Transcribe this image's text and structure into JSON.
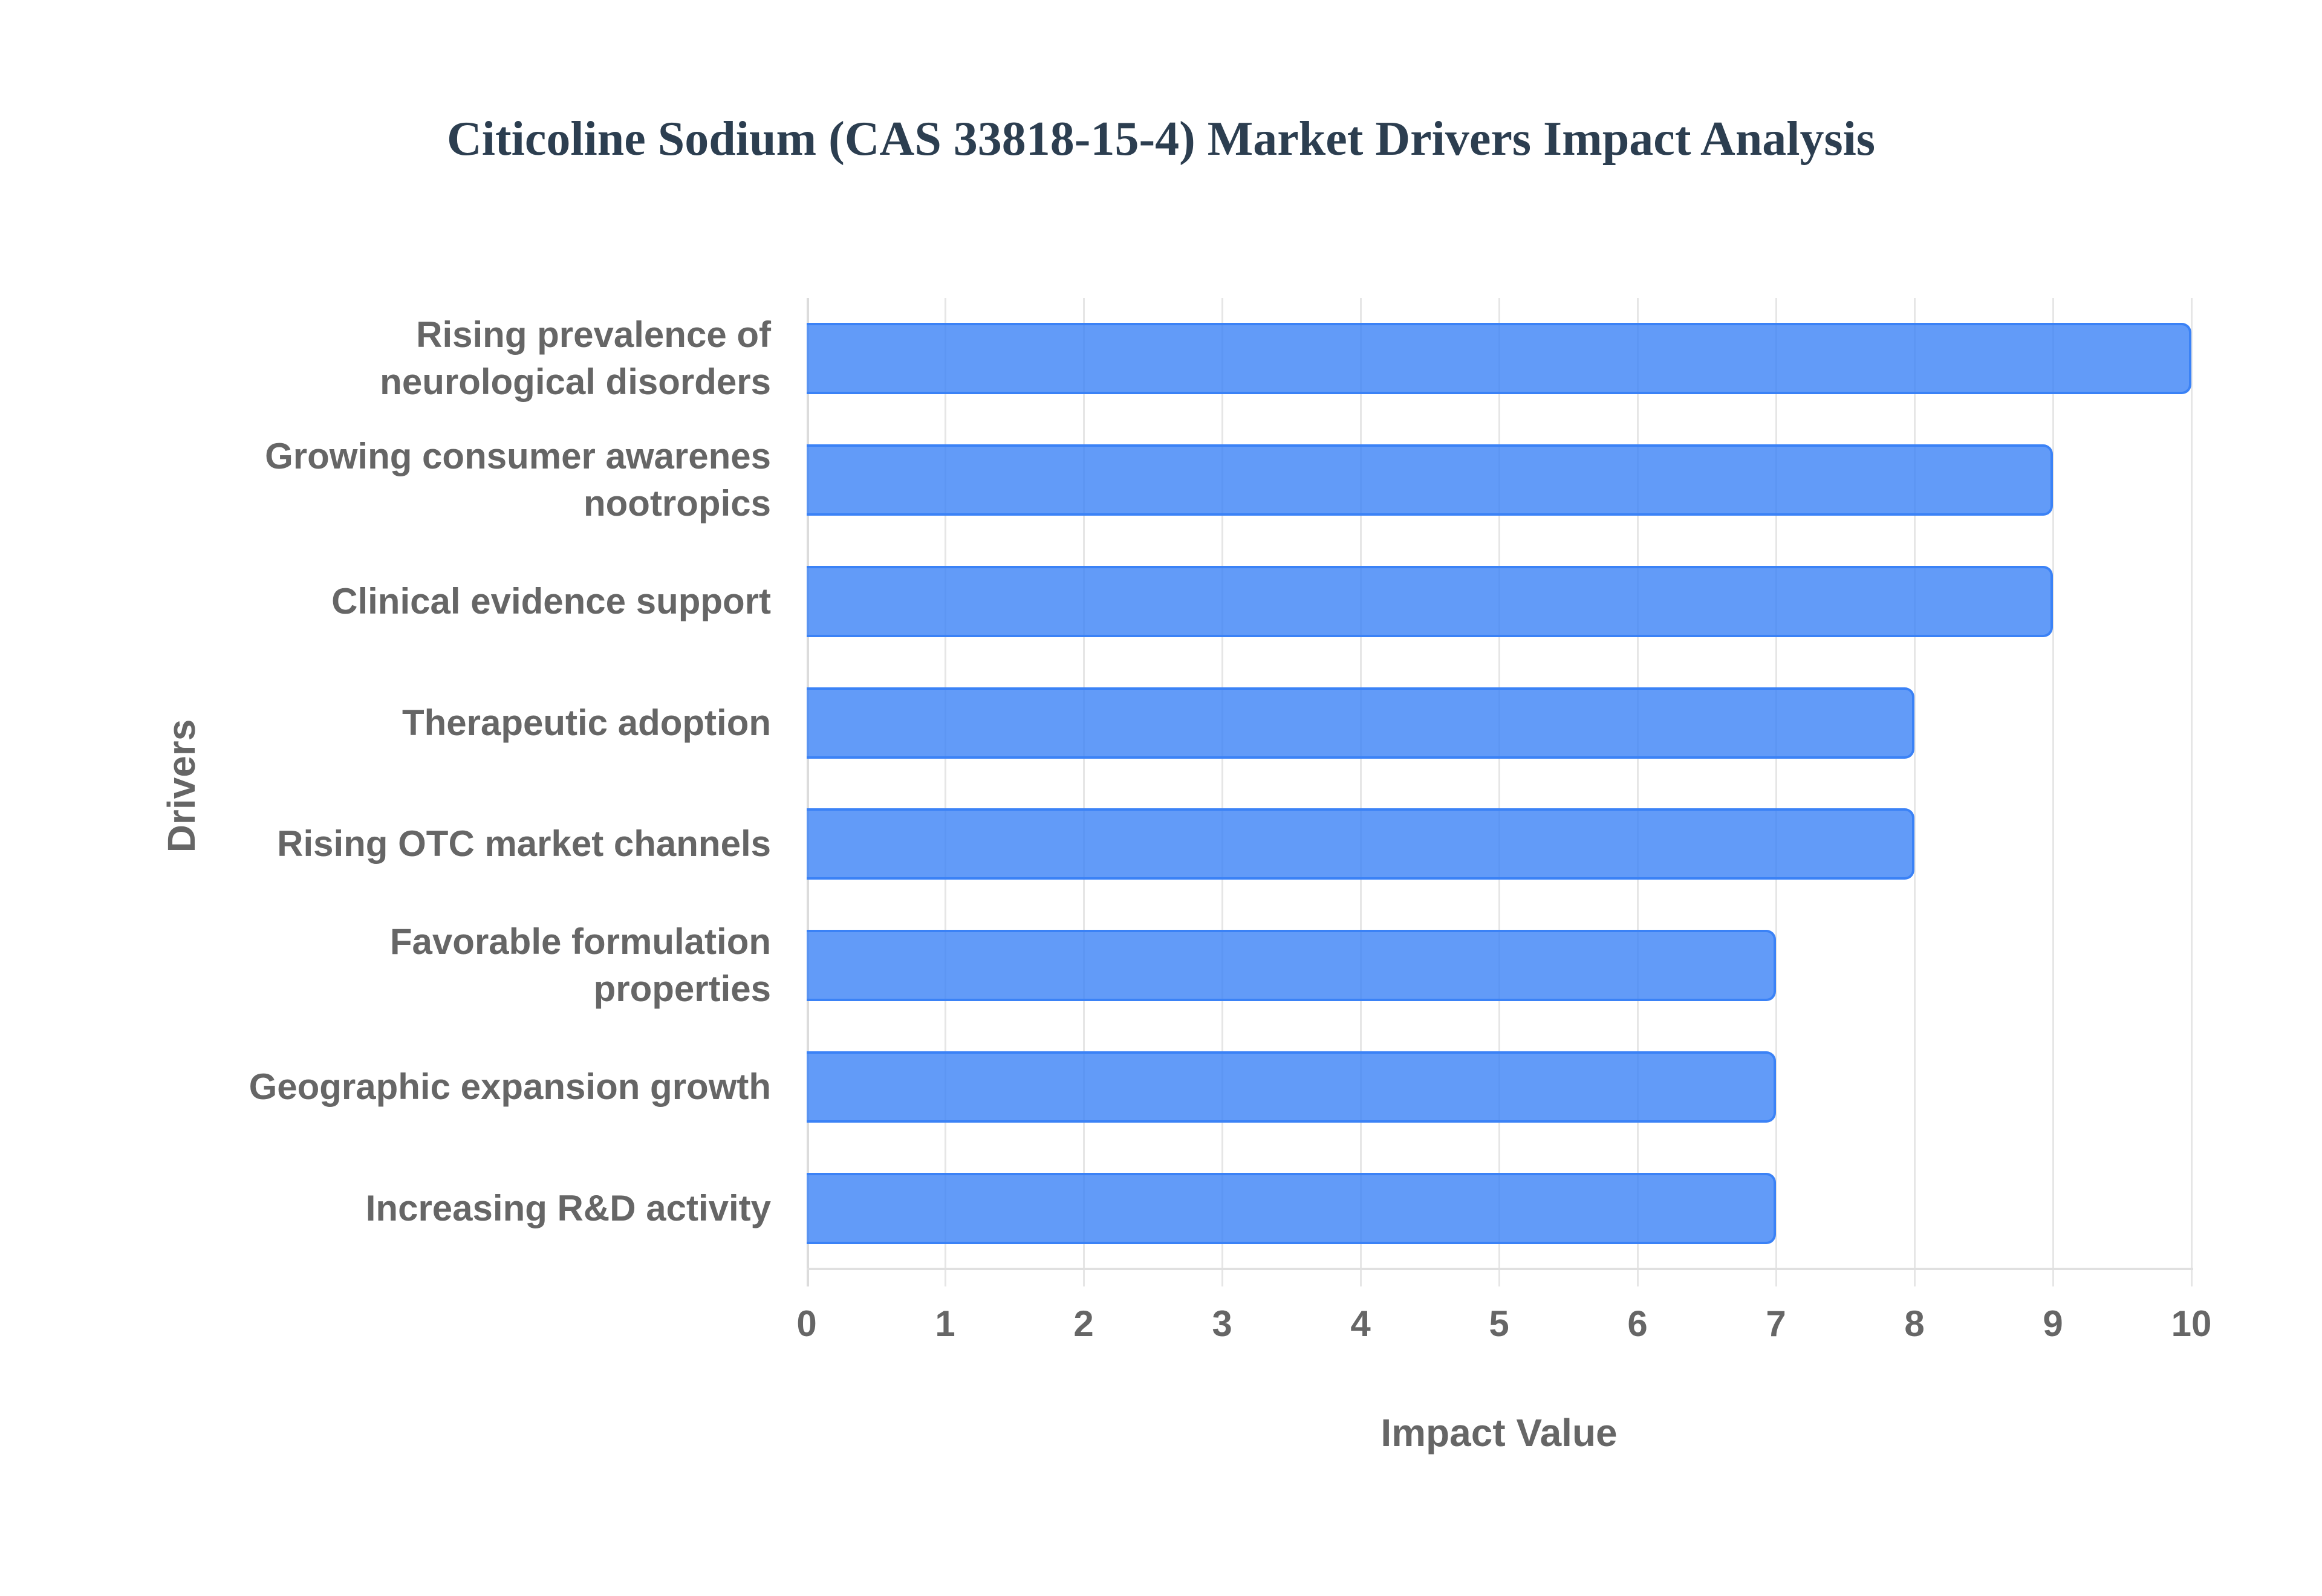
{
  "chart_data": {
    "type": "bar",
    "orientation": "horizontal",
    "title": "Citicoline Sodium (CAS 33818-15-4) Market Drivers Impact Analysis",
    "xlabel": "Impact Value",
    "ylabel": "Drivers",
    "xlim": [
      0,
      10
    ],
    "x_ticks": [
      "0",
      "1",
      "2",
      "3",
      "4",
      "5",
      "6",
      "7",
      "8",
      "9",
      "10"
    ],
    "grid": true,
    "legend": null,
    "categories": [
      "Rising prevalence of\nneurological disorders",
      "Growing consumer awarenes\nnootropics",
      "Clinical evidence support",
      "Therapeutic adoption",
      "Rising OTC market channels",
      "Favorable formulation\nproperties",
      "Geographic expansion growth",
      "Increasing R&D activity"
    ],
    "values": [
      10,
      9,
      9,
      8,
      8,
      7,
      7,
      7
    ],
    "colors": {
      "bar_fill": "#6399f5",
      "bar_border": "#3b82f6",
      "title": "#2c3e50",
      "text": "#666666",
      "grid": "#e6e6e6"
    }
  }
}
